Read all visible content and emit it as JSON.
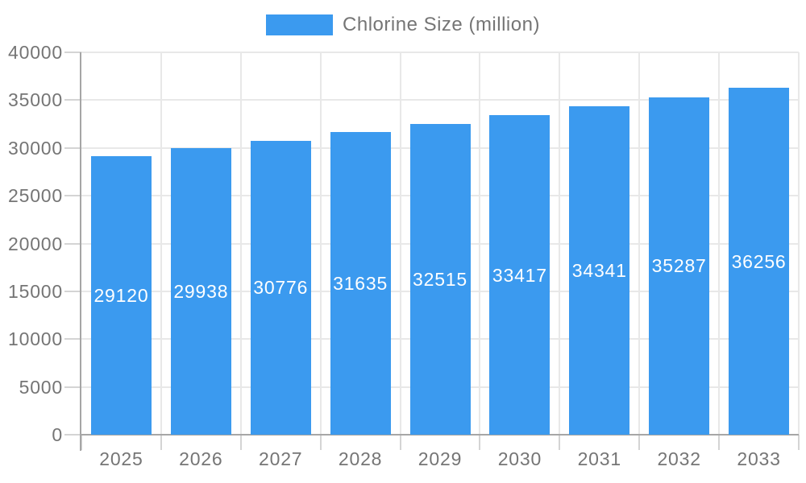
{
  "legend": {
    "label": "Chlorine Size (million)"
  },
  "chart_data": {
    "type": "bar",
    "title": "",
    "categories": [
      "2025",
      "2026",
      "2027",
      "2028",
      "2029",
      "2030",
      "2031",
      "2032",
      "2033"
    ],
    "series": [
      {
        "name": "Chlorine Size (million)",
        "values": [
          29120,
          29938,
          30776,
          31635,
          32515,
          33417,
          34341,
          35287,
          36256
        ]
      }
    ],
    "xlabel": "",
    "ylabel": "",
    "ylim": [
      0,
      40000
    ],
    "ytick_step": 5000,
    "ytick_labels": [
      "0",
      "5000",
      "10000",
      "15000",
      "20000",
      "25000",
      "30000",
      "35000",
      "40000"
    ],
    "grid": true,
    "legend_position": "top-center",
    "value_labels": "inside-center"
  },
  "colors": {
    "bar": "#3B9AEF",
    "axis_text": "#757575",
    "bar_label_text": "#FFFFFF",
    "grid_line": "#E8E8E8",
    "tick_line": "#D4D4D4",
    "axis_line": "#A6A6A6",
    "background": "#FFFFFF"
  }
}
